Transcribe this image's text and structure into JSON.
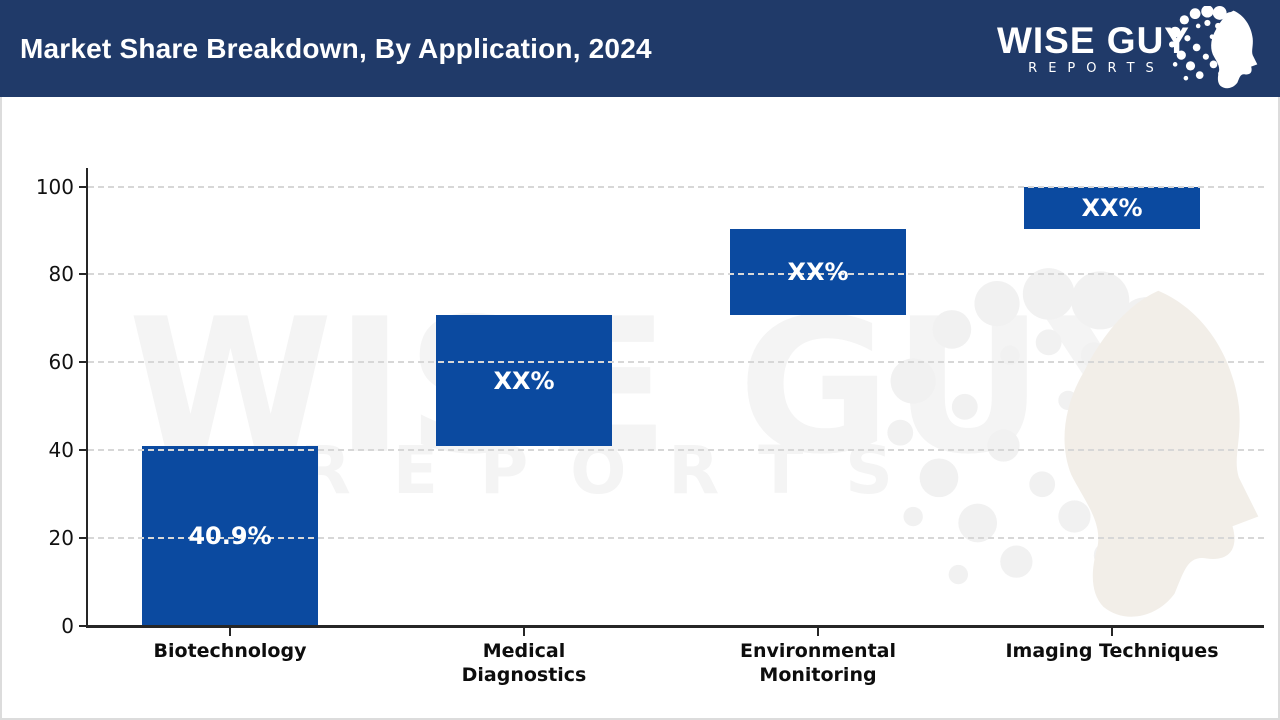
{
  "header": {
    "title": "Market Share Breakdown, By Application, 2024",
    "logo": {
      "brand": "WISE GUY",
      "sub": "REPORTS"
    }
  },
  "watermark": {
    "line1": "WISE GUY",
    "line2": "REPORTS"
  },
  "theme": {
    "header_bg": "#203a69",
    "bar_color": "#0b4aa0",
    "grid_color": "#d7d7d7",
    "axis_color": "#262626",
    "value_label_color": "#ffffff"
  },
  "chart_data": {
    "type": "bar",
    "subtype": "waterfall",
    "title": "Market Share Breakdown, By Application, 2024",
    "categories": [
      "Biotechnology",
      "Medical\nDiagnostics",
      "Environmental\nMonitoring",
      "Imaging Techniques"
    ],
    "segments": [
      {
        "category": "Biotechnology",
        "start": 0,
        "end": 40.9,
        "label": "40.9%"
      },
      {
        "category": "Medical Diagnostics",
        "start": 41.0,
        "end": 70.7,
        "label": "XX%"
      },
      {
        "category": "Environmental Monitoring",
        "start": 70.7,
        "end": 90.3,
        "label": "XX%"
      },
      {
        "category": "Imaging Techniques",
        "start": 90.3,
        "end": 100,
        "label": "XX%"
      }
    ],
    "xlabel": "",
    "ylabel": "",
    "ylim": [
      0,
      100
    ],
    "yticks": [
      0,
      20,
      40,
      60,
      80,
      100
    ],
    "grid": "horizontal-dashed",
    "legend": "none"
  }
}
